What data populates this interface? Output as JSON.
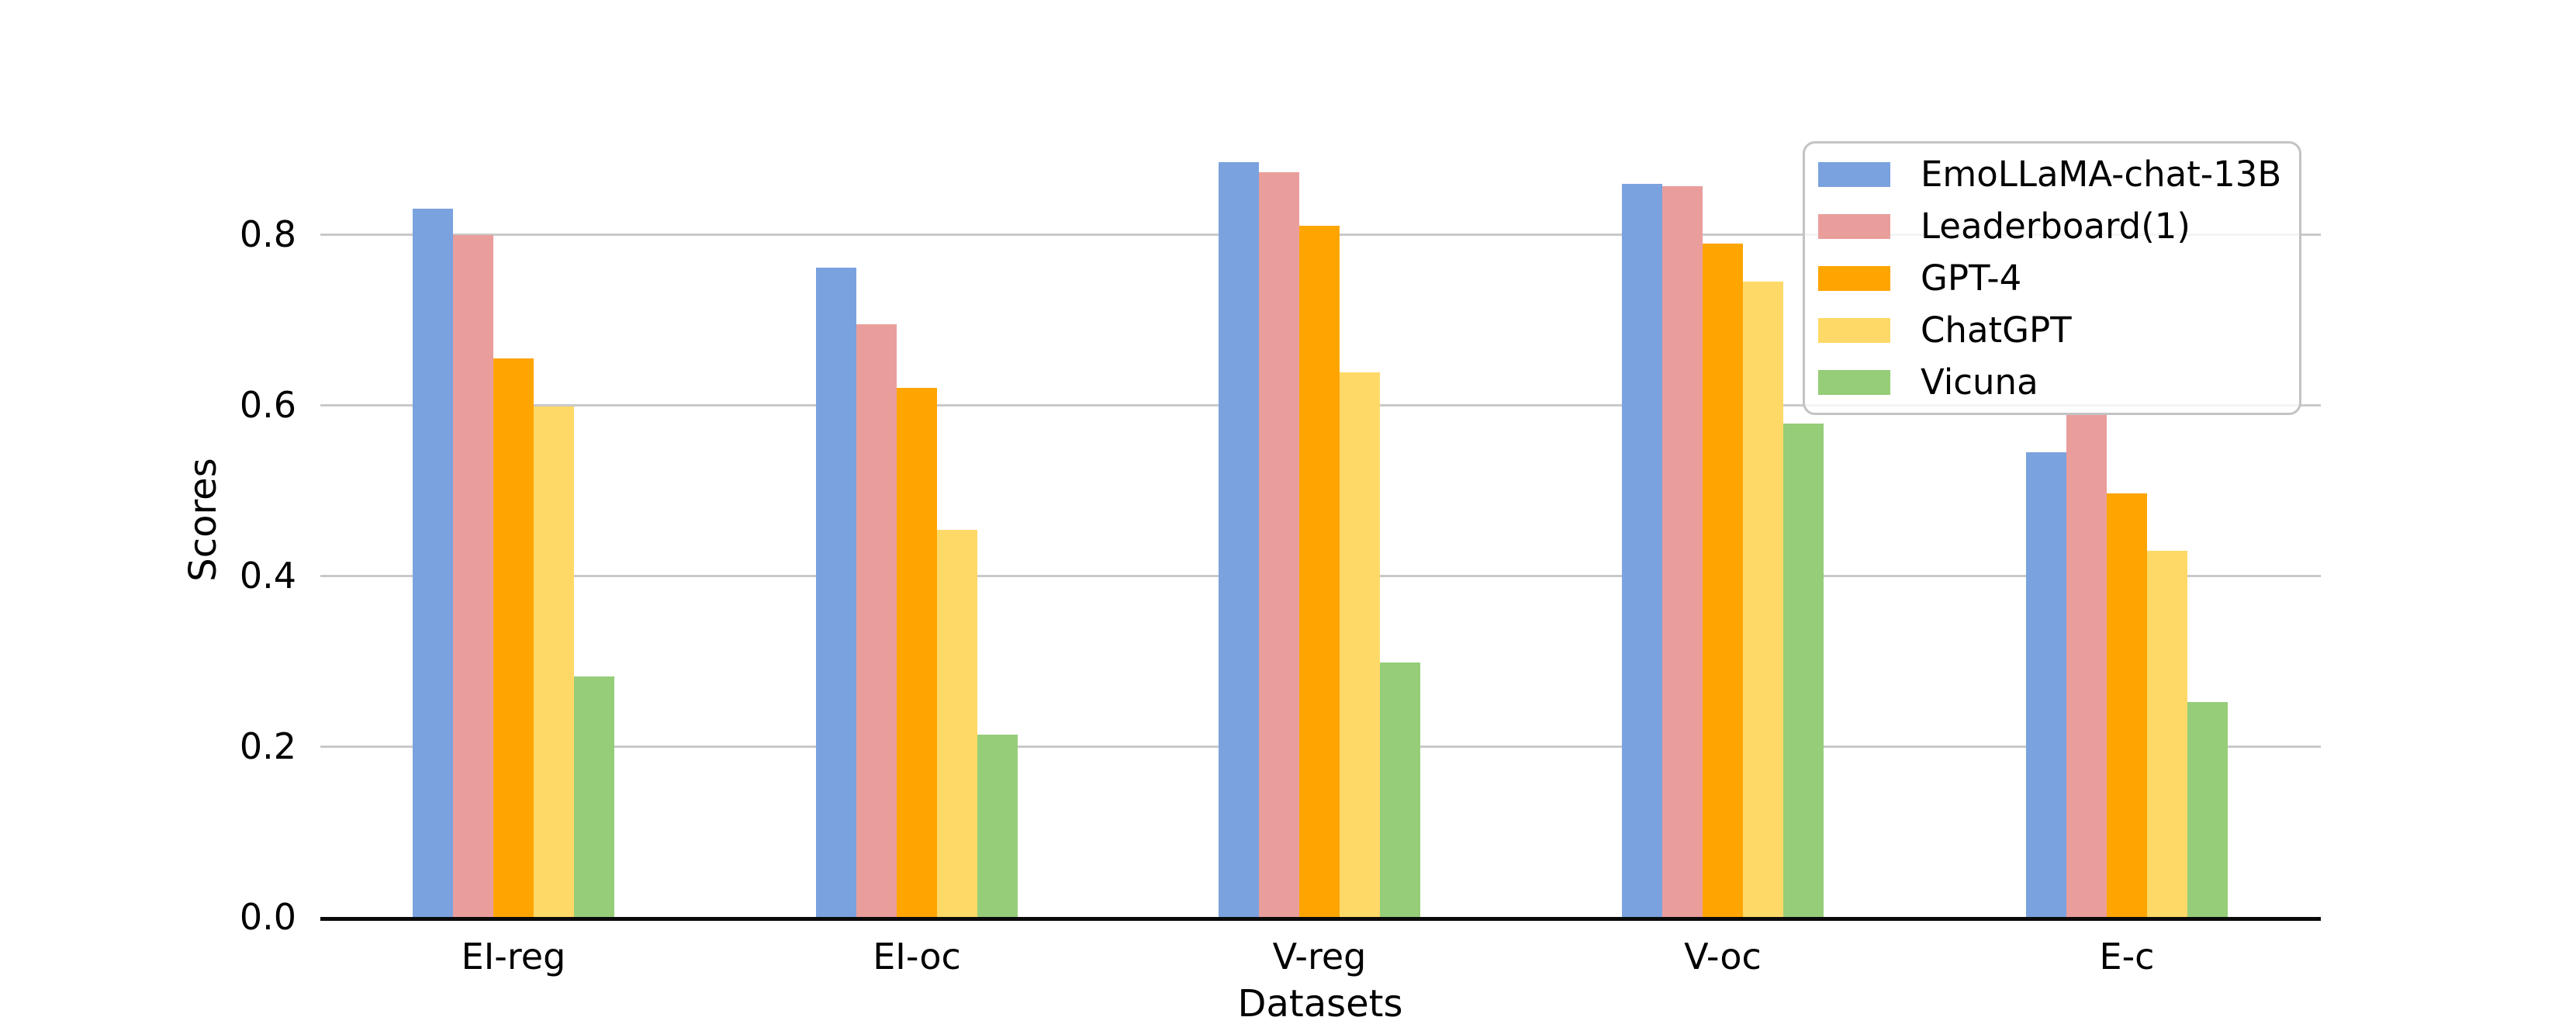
{
  "figure": {
    "background": "#ffffff",
    "axis_color": "#0a0a0a",
    "gridline_color": "#c9c9c9"
  },
  "chart_data": {
    "type": "bar",
    "title": "",
    "xlabel": "Datasets",
    "ylabel": "Scores",
    "categories": [
      "EI-reg",
      "EI-oc",
      "V-reg",
      "V-oc",
      "E-c"
    ],
    "series": [
      {
        "name": "EmoLLaMA-chat-13B",
        "color": "#7aa2de",
        "values": [
          0.83,
          0.761,
          0.885,
          0.859,
          0.545
        ]
      },
      {
        "name": "Leaderboard(1)",
        "color": "#e99e9c",
        "values": [
          0.799,
          0.695,
          0.873,
          0.856,
          0.588
        ]
      },
      {
        "name": "GPT-4",
        "color": "#ffa502",
        "values": [
          0.655,
          0.62,
          0.81,
          0.789,
          0.496
        ]
      },
      {
        "name": "ChatGPT",
        "color": "#ffd967",
        "values": [
          0.598,
          0.454,
          0.638,
          0.745,
          0.429
        ]
      },
      {
        "name": "Vicuna",
        "color": "#95cd78",
        "values": [
          0.282,
          0.214,
          0.298,
          0.578,
          0.252
        ]
      }
    ],
    "yticks": [
      0.0,
      0.2,
      0.4,
      0.6,
      0.8
    ],
    "ytick_labels": [
      "0.0",
      "0.2",
      "0.4",
      "0.6",
      "0.8"
    ],
    "ylim": [
      0,
      0.95
    ],
    "grid": "horizontal",
    "legend_position": "upper right"
  }
}
